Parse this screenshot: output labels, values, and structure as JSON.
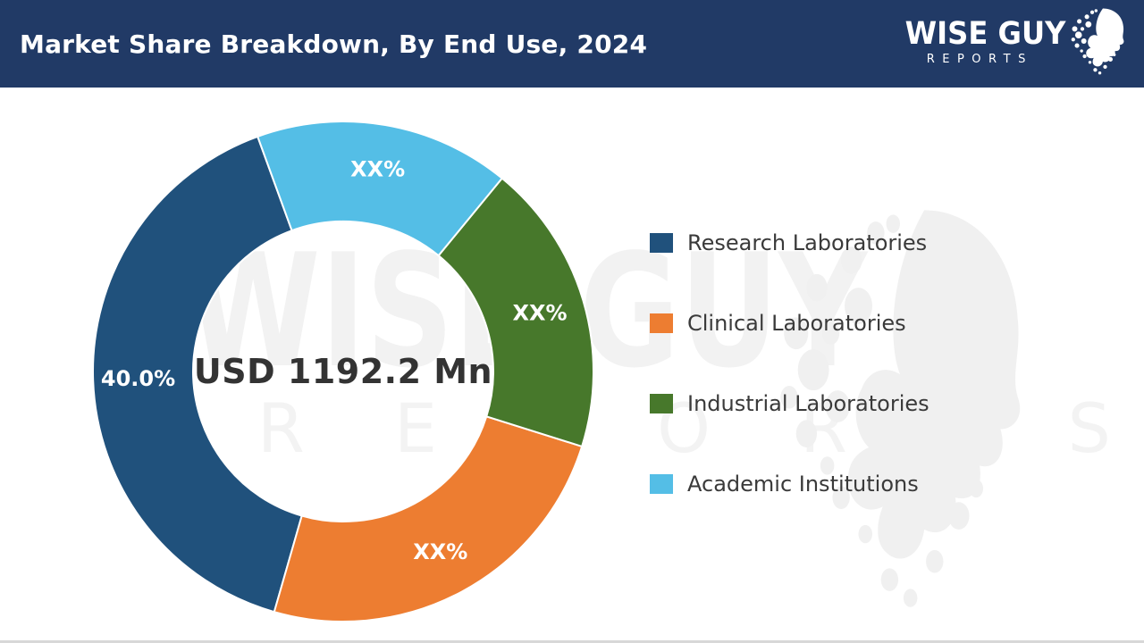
{
  "header": {
    "title": "Market Share Breakdown, By End Use, 2024",
    "logo": {
      "line1": "WISE GUY",
      "line2": "REPORTS"
    }
  },
  "watermark": {
    "line1": "WISE GUY",
    "line2": "R E P O R T S"
  },
  "chart_data": {
    "type": "pie",
    "variant": "donut",
    "title": "Market Share Breakdown, By End Use, 2024",
    "center_label": "USD 1192.2 Mn",
    "legend_position": "right",
    "start_angle_deg": 110,
    "direction": "counterclockwise",
    "segments": [
      {
        "label": "Research Laboratories",
        "display_value": "40.0%",
        "value": 40.0,
        "color": "#20517C"
      },
      {
        "label": "Clinical Laboratories",
        "display_value": "XX%",
        "value": 24.6,
        "color": "#ED7D31"
      },
      {
        "label": "Industrial Laboratories",
        "display_value": "XX%",
        "value": 18.9,
        "color": "#47782B"
      },
      {
        "label": "Academic Institutions",
        "display_value": "XX%",
        "value": 16.5,
        "color": "#54BEE6"
      }
    ]
  },
  "colors": {
    "header_bg": "#213A66",
    "center_text": "#333333",
    "legend_text": "#3a3a3a",
    "watermark": "#f2f2f2",
    "bottom_rule": "#d8d8d8"
  }
}
